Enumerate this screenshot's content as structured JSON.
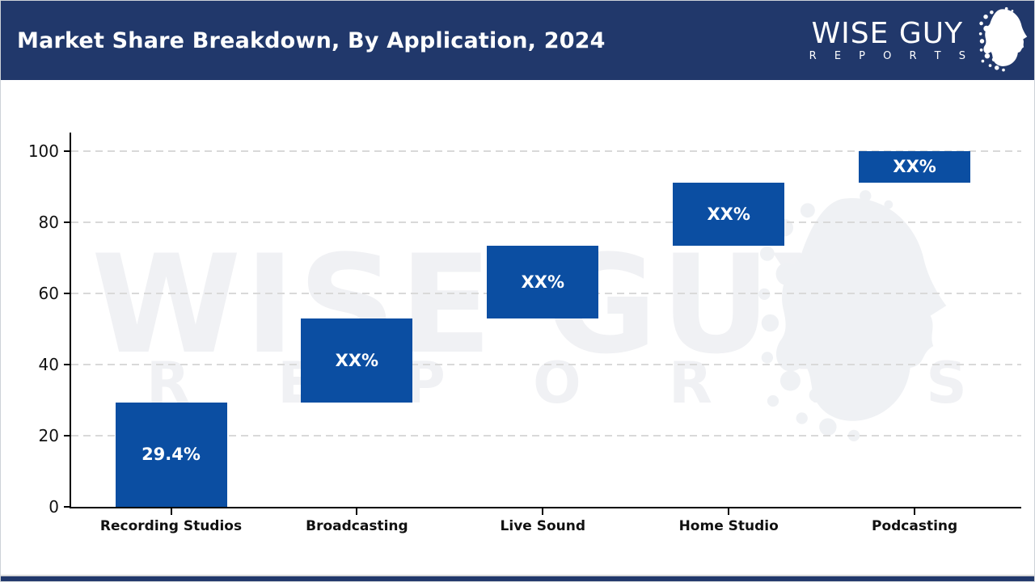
{
  "header": {
    "title": "Market Share Breakdown, By Application, 2024",
    "background": "#21386B",
    "logo": {
      "line1": "WISE GUY",
      "line2": "R E P O R T S"
    }
  },
  "watermark": {
    "line1": "WISE GUY",
    "line2": "R E P O R T S"
  },
  "chart_data": {
    "type": "bar",
    "subtype": "waterfall",
    "title": "Market Share Breakdown, By Application, 2024",
    "categories": [
      "Recording Studios",
      "Broadcasting",
      "Live Sound",
      "Home Studio",
      "Podcasting"
    ],
    "segments": [
      {
        "category": "Recording Studios",
        "start": 0,
        "end": 29.4,
        "label": "29.4%"
      },
      {
        "category": "Broadcasting",
        "start": 29.4,
        "end": 53.0,
        "label": "XX%"
      },
      {
        "category": "Live Sound",
        "start": 53.0,
        "end": 73.4,
        "label": "XX%"
      },
      {
        "category": "Home Studio",
        "start": 73.4,
        "end": 91.2,
        "label": "XX%"
      },
      {
        "category": "Podcasting",
        "start": 91.2,
        "end": 100.0,
        "label": "XX%"
      }
    ],
    "yticks": [
      0,
      20,
      40,
      60,
      80,
      100
    ],
    "ylim": [
      0,
      105
    ],
    "grid": "horizontal-dashed",
    "legend": "none",
    "bar_color": "#0B4EA2",
    "bar_label_color": "#ffffff",
    "axis_color": "#000000",
    "gridline_color": "#d9d9d9"
  },
  "footer": {
    "background": "#21386B"
  }
}
